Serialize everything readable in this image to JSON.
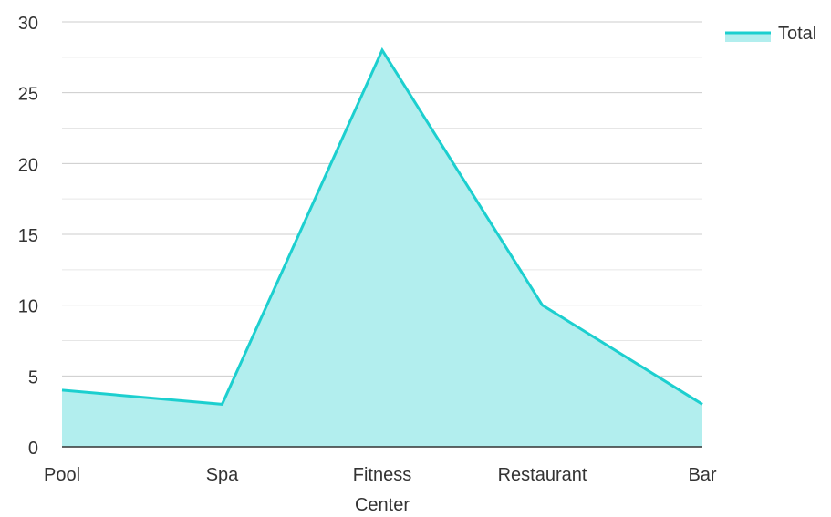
{
  "chart_data": {
    "type": "area",
    "categories": [
      "Pool",
      "Spa",
      "Fitness Center",
      "Restaurant",
      "Bar"
    ],
    "series": [
      {
        "name": "Total",
        "values": [
          4,
          3,
          28,
          10,
          3
        ]
      }
    ],
    "title": "",
    "xlabel": "",
    "ylabel": "",
    "ylim": [
      0,
      30
    ],
    "yticks": [
      0,
      5,
      10,
      15,
      20,
      25,
      30
    ],
    "grid": true,
    "legend": "top-right",
    "colors": {
      "line": "#1ccfcf",
      "fill": "#b2eeee",
      "grid": "#cccccc",
      "grid_minor": "#e6e6e6",
      "axis": "#333333"
    }
  }
}
